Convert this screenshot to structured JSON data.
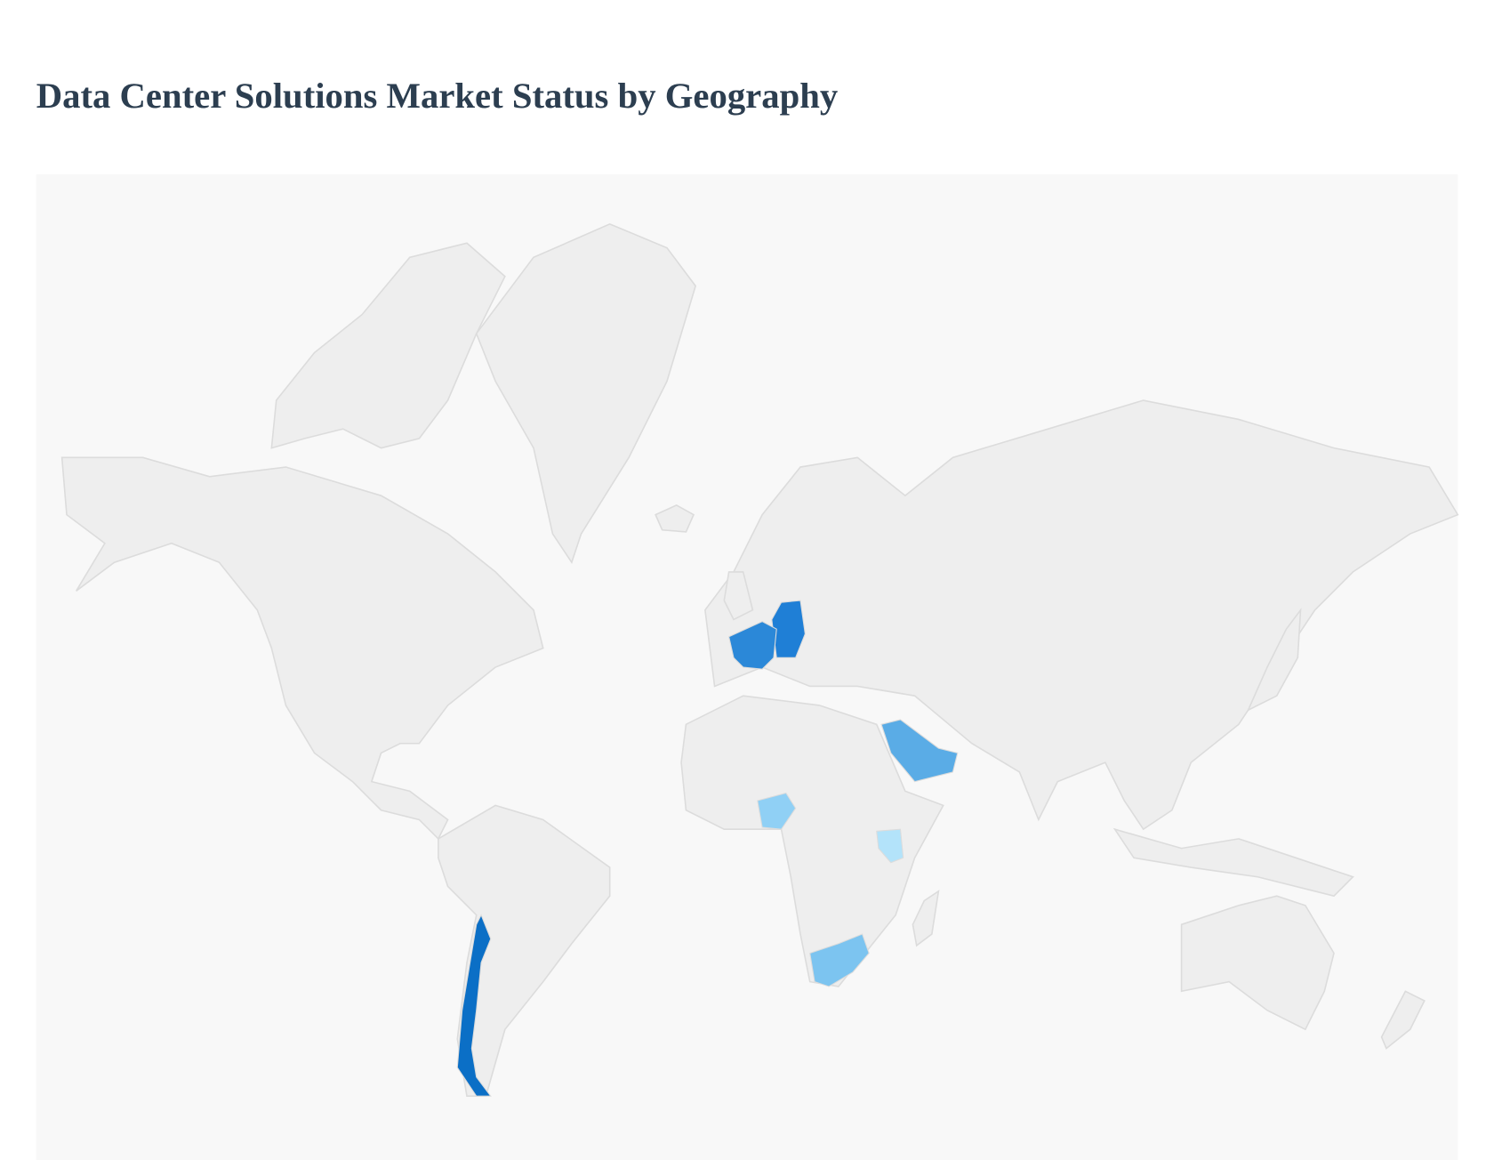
{
  "header": {
    "title": "Data Center Solutions Market Status by Geography"
  }
}
